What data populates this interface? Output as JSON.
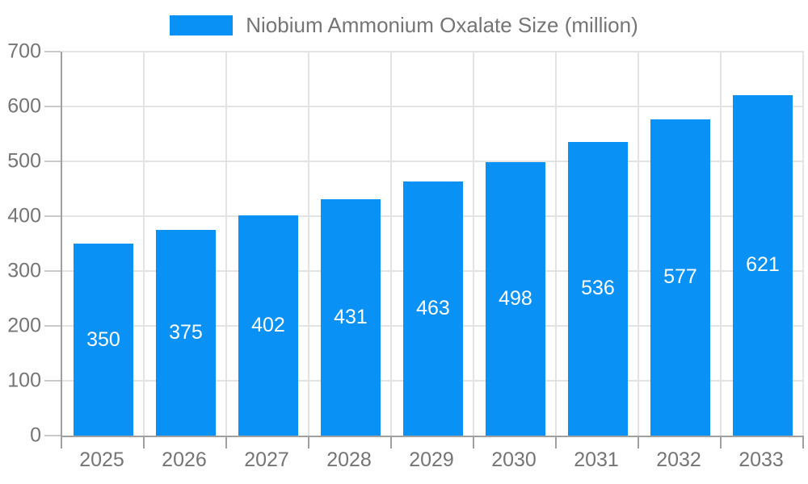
{
  "legend": {
    "label": "Niobium Ammonium Oxalate Size (million)"
  },
  "chart_data": {
    "type": "bar",
    "title": "Niobium Ammonium Oxalate Size (million)",
    "categories": [
      "2025",
      "2026",
      "2027",
      "2028",
      "2029",
      "2030",
      "2031",
      "2032",
      "2033"
    ],
    "values": [
      350,
      375,
      402,
      431,
      463,
      498,
      536,
      577,
      621
    ],
    "xlabel": "",
    "ylabel": "",
    "ylim": [
      0,
      700
    ],
    "ytick_step": 100,
    "grid": true,
    "legend_position": "top",
    "value_labels": "centered-inside-white",
    "colors": {
      "bar": "#0a91f5",
      "value_label": "#ffffff",
      "axis_text": "#757575",
      "axis_line": "#a0a0a0",
      "gridline": "#e3e3e3"
    }
  }
}
